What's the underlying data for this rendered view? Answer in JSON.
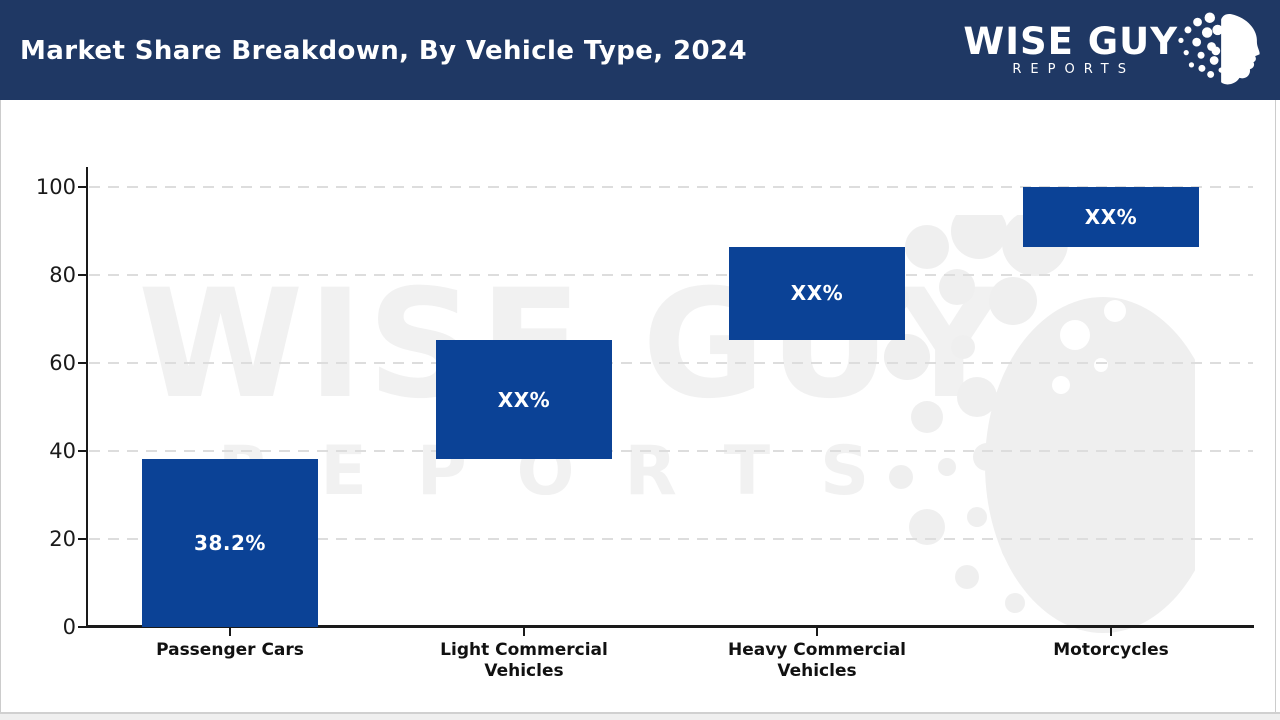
{
  "header": {
    "title": "Market Share Breakdown, By Vehicle Type, 2024",
    "logo": {
      "wordmark": "WISE GUY",
      "subtitle": "REPORTS"
    }
  },
  "watermark": {
    "wordmark": "WISE GUY",
    "subtitle": "REPORTS"
  },
  "colors": {
    "header_bg": "#1f3864",
    "bar": "#0b4296",
    "grid": "#dddddd",
    "axis": "#1a1a1a",
    "value_label": "#ffffff",
    "watermark": "#f1f1f1"
  },
  "chart_data": {
    "type": "bar",
    "variant": "floating-waterfall",
    "title": "Market Share Breakdown, By Vehicle Type, 2024",
    "categories": [
      "Passenger Cars",
      "Light Commercial Vehicles",
      "Heavy Commercial Vehicles",
      "Motorcycles"
    ],
    "segments": [
      {
        "category": "Passenger Cars",
        "start": 0,
        "end": 38.2,
        "label": "38.2%"
      },
      {
        "category": "Light Commercial Vehicles",
        "start": 38.2,
        "end": 65.2,
        "label": "XX%"
      },
      {
        "category": "Heavy Commercial Vehicles",
        "start": 65.2,
        "end": 86.4,
        "label": "XX%"
      },
      {
        "category": "Motorcycles",
        "start": 86.4,
        "end": 100,
        "label": "XX%"
      }
    ],
    "yticks": [
      0,
      20,
      40,
      60,
      80,
      100
    ],
    "ylim": [
      0,
      105
    ],
    "xlabel": "",
    "ylabel": "",
    "grid": "horizontal-dashed",
    "legend": "none"
  }
}
